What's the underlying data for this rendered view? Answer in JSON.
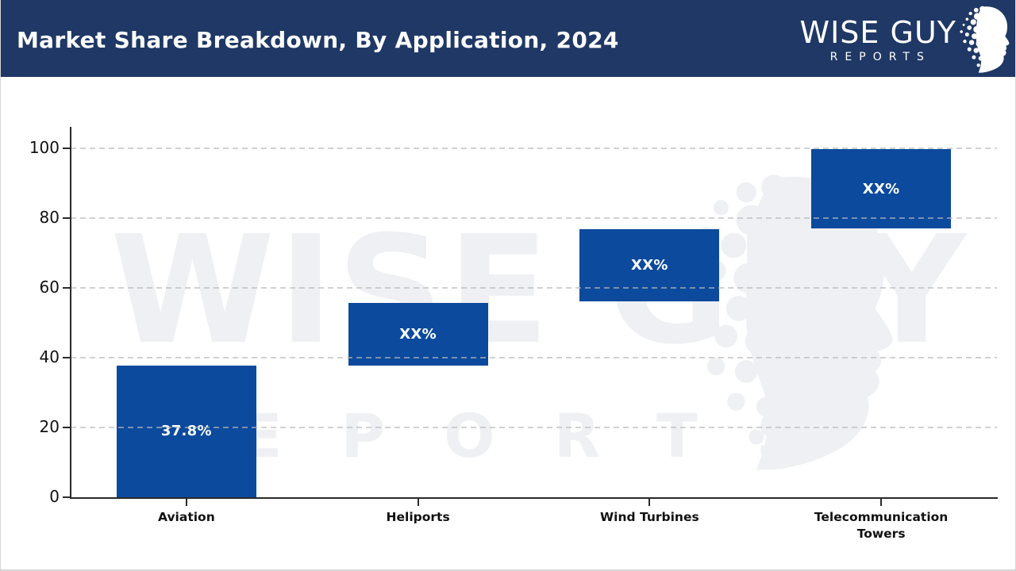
{
  "header": {
    "title": "Market Share Breakdown, By Application, 2024",
    "background": "#1f3865",
    "text_color": "#ffffff",
    "logo": {
      "line1": "WISE GUY",
      "line2": "REPORTS"
    }
  },
  "watermark": {
    "line1": "WISE GUY",
    "line2": "REPORTS"
  },
  "chart_data": {
    "type": "bar",
    "subtype": "waterfall",
    "title": "Market Share Breakdown, By Application, 2024",
    "categories": [
      "Aviation",
      "Heliports",
      "Wind Turbines",
      "Telecommunication Towers"
    ],
    "segments": [
      {
        "category": "Aviation",
        "start": 0,
        "end": 37.8,
        "label": "37.8%"
      },
      {
        "category": "Heliports",
        "start": 37.8,
        "end": 55.6,
        "label": "XX%"
      },
      {
        "category": "Wind Turbines",
        "start": 56.1,
        "end": 76.8,
        "label": "XX%"
      },
      {
        "category": "Telecommunication Towers",
        "start": 77.0,
        "end": 99.8,
        "label": "XX%"
      }
    ],
    "yticks": [
      0,
      20,
      40,
      60,
      80,
      100
    ],
    "ylim": [
      0,
      100
    ],
    "xlabel": "",
    "ylabel": "",
    "grid": true,
    "gridline_style": "dashed",
    "legend": "none",
    "bar_color": "#0b4a9d",
    "bar_label_color": "#ffffff"
  }
}
